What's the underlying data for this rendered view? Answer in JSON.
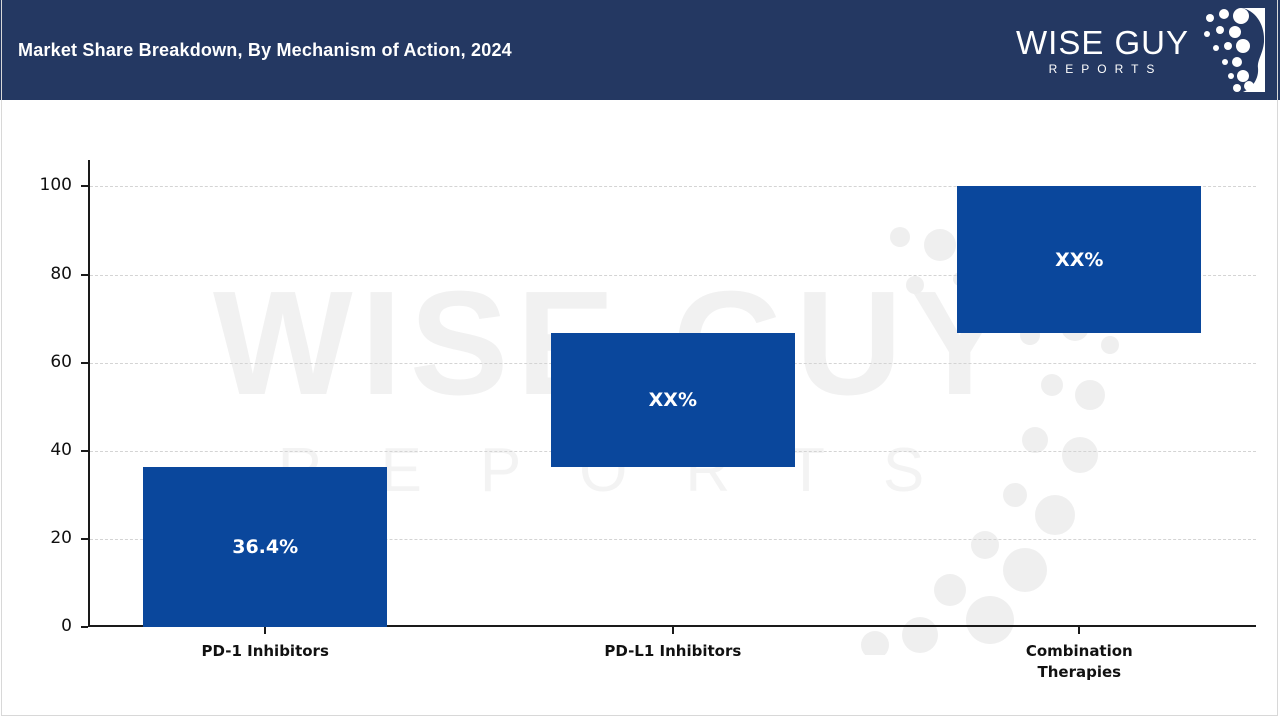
{
  "header": {
    "title": "Market Share Breakdown, By Mechanism of Action, 2024",
    "bg_color": "#243862",
    "logo": {
      "line1": "WISE GUY",
      "line2": "REPORTS"
    }
  },
  "watermark": {
    "line1": "WISE GUY",
    "line2": "REPORTS"
  },
  "chart_data": {
    "type": "bar",
    "subtype": "waterfall",
    "title": "Market Share Breakdown, By Mechanism of Action, 2024",
    "categories": [
      "PD-1 Inhibitors",
      "PD-L1 Inhibitors",
      "Combination Therapies"
    ],
    "segments": [
      {
        "category": "PD-1 Inhibitors",
        "start": 0,
        "end": 36.4,
        "label": "36.4%"
      },
      {
        "category": "PD-L1 Inhibitors",
        "start": 36.4,
        "end": 66.7,
        "label": "XX%"
      },
      {
        "category": "Combination Therapies",
        "start": 66.7,
        "end": 100,
        "label": "XX%"
      }
    ],
    "yticks": [
      0,
      20,
      40,
      60,
      80,
      100
    ],
    "ylim": [
      0,
      106
    ],
    "xlabel": "",
    "ylabel": "",
    "grid": "horizontal-dashed",
    "legend": "none",
    "bar_color": "#0a479c",
    "bar_label_color": "#ffffff",
    "axis_color": "#1a1a1a"
  }
}
